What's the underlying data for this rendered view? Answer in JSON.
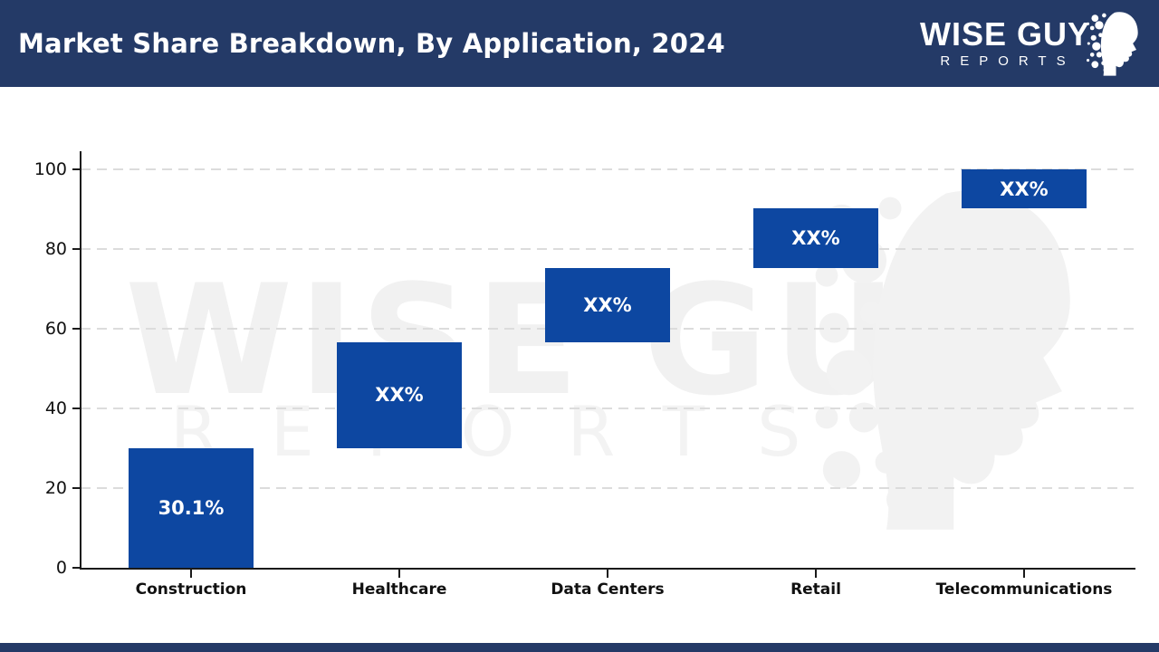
{
  "header": {
    "title": "Market Share Breakdown, By Application, 2024",
    "logo": {
      "brand": "WISE GUY",
      "sub": "REPORTS",
      "icon": "dotted-head-profile"
    }
  },
  "watermark": {
    "brand": "WISE GUY",
    "sub": "REPORTS"
  },
  "chart_data": {
    "type": "bar",
    "subtype": "floating-waterfall",
    "title": "Market Share Breakdown, By Application, 2024",
    "categories": [
      "Construction",
      "Healthcare",
      "Data Centers",
      "Retail",
      "Telecommunications"
    ],
    "series": [
      {
        "name": "Market share (%)",
        "segments": [
          {
            "category": "Construction",
            "start": 0,
            "end": 30.1,
            "value": 30.1,
            "label": "30.1%"
          },
          {
            "category": "Healthcare",
            "start": 30.1,
            "end": 56.6,
            "value": 26.5,
            "label": "XX%"
          },
          {
            "category": "Data Centers",
            "start": 56.6,
            "end": 75.2,
            "value": 18.6,
            "label": "XX%"
          },
          {
            "category": "Retail",
            "start": 75.2,
            "end": 90.2,
            "value": 15.0,
            "label": "XX%"
          },
          {
            "category": "Telecommunications",
            "start": 90.2,
            "end": 100,
            "value": 9.8,
            "label": "XX%"
          }
        ]
      }
    ],
    "xlabel": "",
    "ylabel": "",
    "ylim": [
      0,
      100
    ],
    "yticks": [
      0,
      20,
      40,
      60,
      80,
      100
    ],
    "grid": "horizontal dashed",
    "legend": "none",
    "bar_color": "#0d47a1",
    "bar_label_color": "#ffffff"
  },
  "colors": {
    "header_bg": "#243a67",
    "footer_bg": "#243a67",
    "bar": "#0d47a1",
    "grid": "#dcdcdc",
    "axis": "#1a1a1a",
    "text": "#111111",
    "watermark": "#f1f1f1"
  }
}
